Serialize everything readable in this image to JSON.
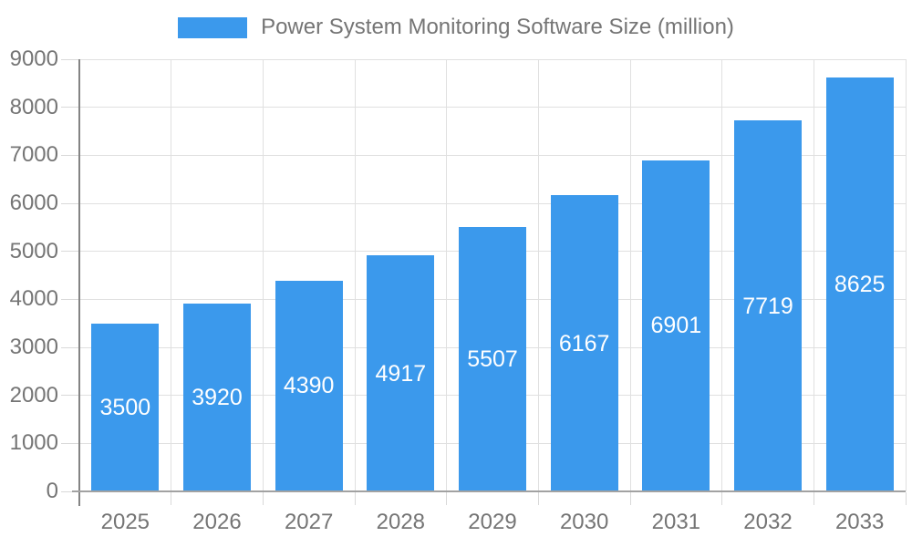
{
  "legend": {
    "label": "Power System Monitoring Software Size (million)"
  },
  "colors": {
    "bar": "#3B99EC",
    "grid": "#E0E0E0",
    "tick": "#D9D9D9",
    "y_axis_line": "#848484",
    "x_axis_line": "#A2A2A2",
    "axis_text": "#757575",
    "legend_text": "#757575",
    "bar_label": "#FFFFFF",
    "background": "#FFFFFF"
  },
  "chart_data": {
    "type": "bar",
    "title": "Power System Monitoring Software Size (million)",
    "categories": [
      "2025",
      "2026",
      "2027",
      "2028",
      "2029",
      "2030",
      "2031",
      "2032",
      "2033"
    ],
    "values": [
      3500,
      3920,
      4390,
      4917,
      5507,
      6167,
      6901,
      7719,
      8625
    ],
    "series": [
      {
        "name": "Power System Monitoring Software Size (million)",
        "values": [
          3500,
          3920,
          4390,
          4917,
          5507,
          6167,
          6901,
          7719,
          8625
        ]
      }
    ],
    "xlabel": "",
    "ylabel": "",
    "ylim": [
      0,
      9000
    ],
    "ytick_step": 1000,
    "ytick_labels": [
      "0",
      "1000",
      "2000",
      "3000",
      "4000",
      "5000",
      "6000",
      "7000",
      "8000",
      "9000"
    ],
    "grid": true,
    "value_labels": "inside-center",
    "legend_position": "top-center"
  }
}
